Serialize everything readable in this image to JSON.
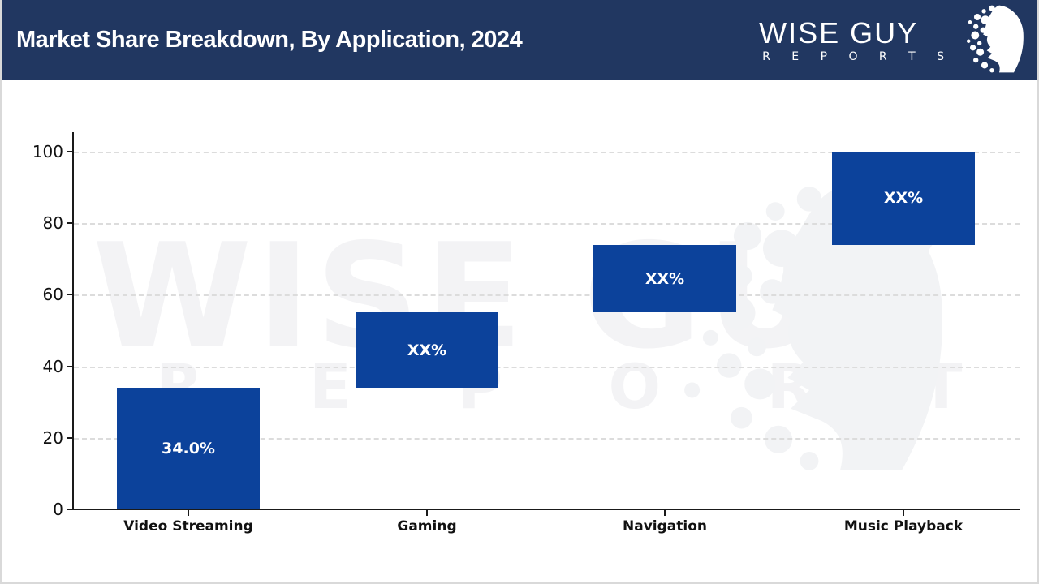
{
  "header": {
    "title": "Market Share Breakdown, By Application, 2024",
    "bg_color": "#213761",
    "logo": {
      "line1": "WISE GUY",
      "line2": "REPORTS"
    }
  },
  "watermark": {
    "line1": "WISE GUY",
    "line2": "R E P O R T S"
  },
  "chart_data": {
    "type": "bar",
    "subtype": "waterfall",
    "title": "Market Share Breakdown, By Application, 2024",
    "xlabel": "",
    "ylabel": "",
    "categories": [
      "Video Streaming",
      "Gaming",
      "Navigation",
      "Music Playback"
    ],
    "segments": [
      {
        "category": "Video Streaming",
        "start": 0,
        "end": 34,
        "label": "34.0%"
      },
      {
        "category": "Gaming",
        "start": 34,
        "end": 55,
        "label": "XX%"
      },
      {
        "category": "Navigation",
        "start": 55,
        "end": 74,
        "label": "XX%"
      },
      {
        "category": "Music Playback",
        "start": 74,
        "end": 100,
        "label": "XX%"
      }
    ],
    "yticks": [
      0,
      20,
      40,
      60,
      80,
      100
    ],
    "ylim": [
      0,
      105
    ],
    "bar_color": "#0c429b",
    "grid": "horizontal-dashed",
    "legend": "none"
  }
}
